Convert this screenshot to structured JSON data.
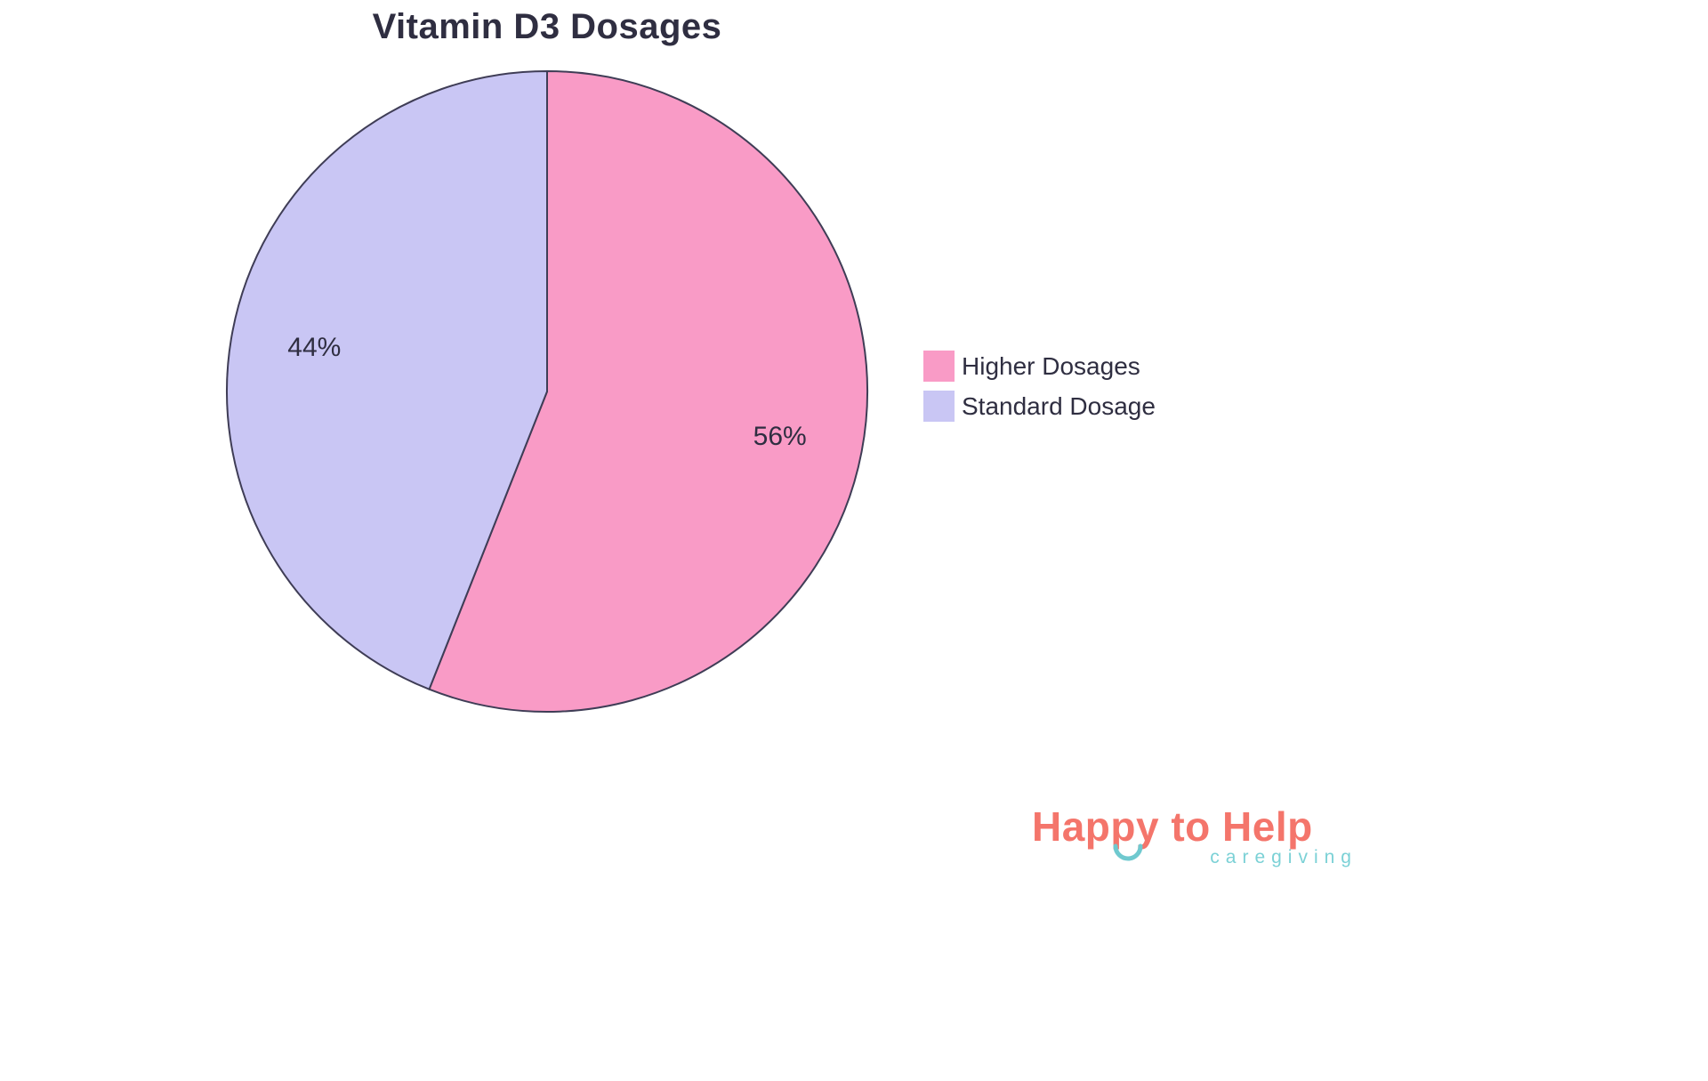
{
  "chart_data": {
    "type": "pie",
    "title": "Vitamin D3 Dosages",
    "labels": [
      "Higher Dosages",
      "Standard Dosage"
    ],
    "values": [
      56,
      44
    ],
    "value_labels": [
      "56%",
      "44%"
    ],
    "colors": [
      "#F99BC6",
      "#C9C6F4"
    ],
    "slice_border_color": "#3F3D56",
    "start_angle_deg": 0,
    "direction": "clockwise",
    "legend_position": "right"
  },
  "legend": {
    "items": [
      {
        "label": "Higher Dosages",
        "color": "#F99BC6"
      },
      {
        "label": "Standard Dosage",
        "color": "#C9C6F4"
      }
    ]
  },
  "branding": {
    "name": "Happy to Help",
    "tagline": "caregiving",
    "name_color": "#F4756B",
    "tagline_color": "#7BD1D6",
    "smile_color": "#6FC9CF"
  }
}
